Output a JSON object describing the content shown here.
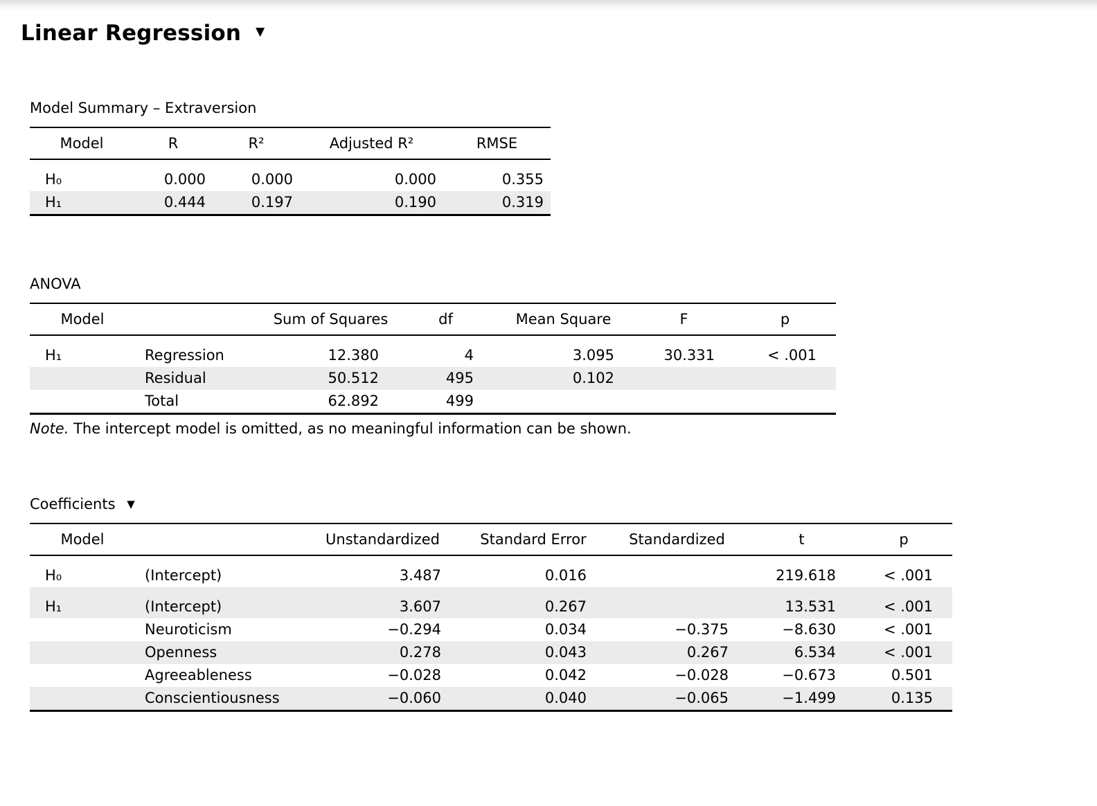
{
  "page": {
    "title": "Linear Regression",
    "title_dropdown_icon": "▼"
  },
  "colors": {
    "row_shade": "#ebebeb",
    "border": "#000000",
    "text": "#000000"
  },
  "tables": {
    "model_summary": {
      "title": "Model Summary – Extraversion",
      "headers": [
        "Model",
        "R",
        "R²",
        "Adjusted R²",
        "RMSE"
      ],
      "rows": [
        {
          "group_start": true,
          "cells": [
            "H₀",
            "0.000",
            "0.000",
            "0.000",
            "0.355"
          ]
        },
        {
          "group_start": false,
          "cells": [
            "H₁",
            "0.444",
            "0.197",
            "0.190",
            "0.319"
          ]
        }
      ]
    },
    "anova": {
      "title": "ANOVA",
      "headers": [
        "Model",
        "",
        "Sum of Squares",
        "df",
        "Mean Square",
        "F",
        "p"
      ],
      "rows": [
        {
          "group_start": true,
          "cells": [
            "H₁",
            "Regression",
            "12.380",
            "4",
            "3.095",
            "30.331",
            "< .001"
          ]
        },
        {
          "group_start": false,
          "cells": [
            "",
            "Residual",
            "50.512",
            "495",
            "0.102",
            "",
            ""
          ]
        },
        {
          "group_start": false,
          "cells": [
            "",
            "Total",
            "62.892",
            "499",
            "",
            "",
            ""
          ]
        }
      ],
      "note_label": "Note.",
      "note_text": " The intercept model is omitted, as no meaningful information can be shown."
    },
    "coefficients": {
      "title": "Coefficients",
      "dropdown_icon": "▼",
      "headers": [
        "Model",
        "",
        "Unstandardized",
        "Standard Error",
        "Standardized",
        "t",
        "p"
      ],
      "rows": [
        {
          "group_start": true,
          "cells": [
            "H₀",
            "(Intercept)",
            "3.487",
            "0.016",
            "",
            "219.618",
            "< .001"
          ]
        },
        {
          "group_start": true,
          "cells": [
            "H₁",
            "(Intercept)",
            "3.607",
            "0.267",
            "",
            "13.531",
            "< .001"
          ]
        },
        {
          "group_start": false,
          "cells": [
            "",
            "Neuroticism",
            "−0.294",
            "0.034",
            "−0.375",
            "−8.630",
            "< .001"
          ]
        },
        {
          "group_start": false,
          "cells": [
            "",
            "Openness",
            "0.278",
            "0.043",
            "0.267",
            "6.534",
            "< .001"
          ]
        },
        {
          "group_start": false,
          "cells": [
            "",
            "Agreeableness",
            "−0.028",
            "0.042",
            "−0.028",
            "−0.673",
            "0.501"
          ]
        },
        {
          "group_start": false,
          "cells": [
            "",
            "Conscientiousness",
            "−0.060",
            "0.040",
            "−0.065",
            "−1.499",
            "0.135"
          ]
        }
      ]
    }
  }
}
